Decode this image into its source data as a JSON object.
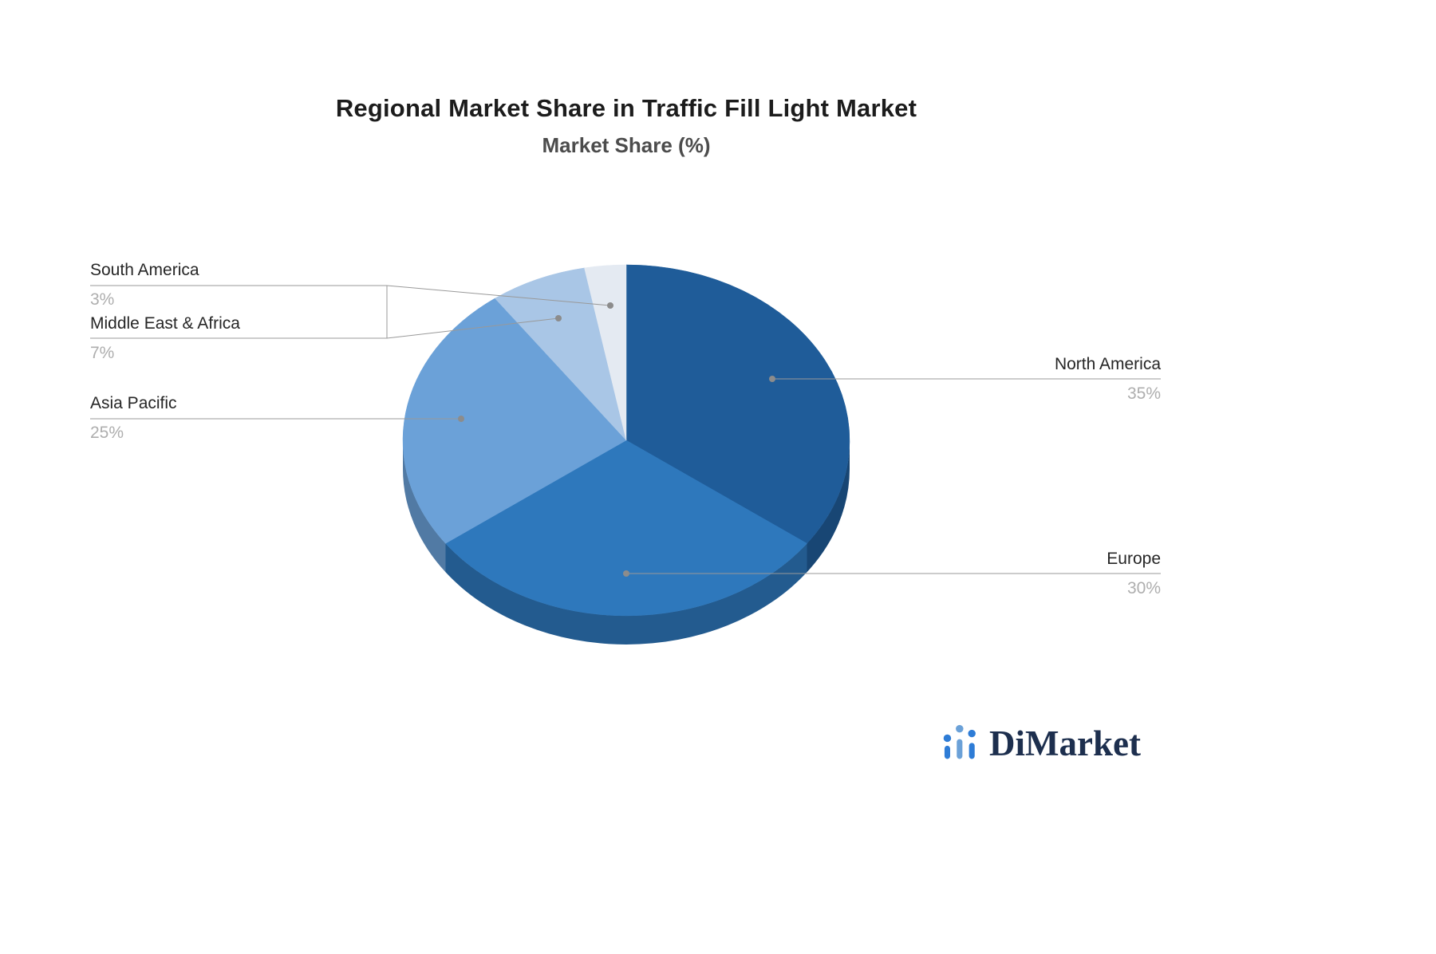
{
  "title": "Regional Market Share in Traffic Fill Light Market",
  "subtitle": "Market Share (%)",
  "chart_data": {
    "type": "pie",
    "style": "3d",
    "unit": "%",
    "direction": "clockwise",
    "start_angle_deg": 0,
    "slices": [
      {
        "name": "North America",
        "value": 35,
        "pct": "35%",
        "color": "#1f5c99"
      },
      {
        "name": "Europe",
        "value": 30,
        "pct": "30%",
        "color": "#2e78bc"
      },
      {
        "name": "Asia Pacific",
        "value": 25,
        "pct": "25%",
        "color": "#6ba1d8"
      },
      {
        "name": "Middle East & Africa",
        "value": 7,
        "pct": "7%",
        "color": "#a9c6e6"
      },
      {
        "name": "South America",
        "value": 3,
        "pct": "3%",
        "color": "#e4eaf2"
      }
    ]
  },
  "logo": {
    "text": "DiMarket",
    "icon": "bar-chart-dots-icon",
    "accent_color": "#2e7cd6",
    "text_color": "#1d2f4e"
  }
}
